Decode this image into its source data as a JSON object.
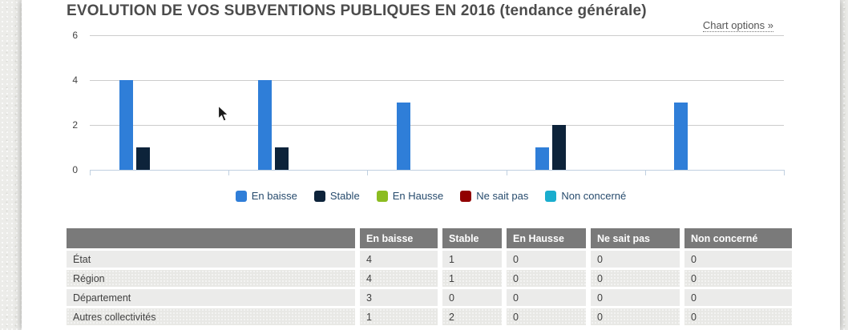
{
  "page": {
    "title": "EVOLUTION DE VOS SUBVENTIONS PUBLIQUES EN 2016 (tendance générale)",
    "chart_options_label": "Chart options »"
  },
  "chart_data": {
    "type": "bar",
    "title": "EVOLUTION DE VOS SUBVENTIONS PUBLIQUES EN 2016 (tendance générale)",
    "categories": [
      "État",
      "Région",
      "Département",
      "Autres collectivités",
      ""
    ],
    "series": [
      {
        "name": "En baisse",
        "color": "#2f7ed8",
        "values": [
          4,
          4,
          3,
          1,
          3
        ]
      },
      {
        "name": "Stable",
        "color": "#0d233a",
        "values": [
          1,
          1,
          0,
          2,
          0
        ]
      },
      {
        "name": "En Hausse",
        "color": "#8bbc21",
        "values": [
          0,
          0,
          0,
          0,
          0
        ]
      },
      {
        "name": "Ne sait pas",
        "color": "#910000",
        "values": [
          0,
          0,
          0,
          0,
          0
        ]
      },
      {
        "name": "Non concerné",
        "color": "#1aadce",
        "values": [
          0,
          0,
          0,
          0,
          0
        ]
      }
    ],
    "yticks": [
      0,
      2,
      4,
      6
    ],
    "ylim": [
      0,
      6
    ],
    "grid": true,
    "legend_position": "bottom",
    "xlabel": "",
    "ylabel": ""
  },
  "table": {
    "columns": [
      "",
      "En baisse",
      "Stable",
      "En Hausse",
      "Ne sait pas",
      "Non concerné"
    ],
    "rows": [
      {
        "label": "État",
        "values": [
          "4",
          "1",
          "0",
          "0",
          "0"
        ]
      },
      {
        "label": "Région",
        "values": [
          "4",
          "1",
          "0",
          "0",
          "0"
        ]
      },
      {
        "label": "Département",
        "values": [
          "3",
          "0",
          "0",
          "0",
          "0"
        ]
      },
      {
        "label": "Autres collectivités",
        "values": [
          "1",
          "2",
          "0",
          "0",
          "0"
        ]
      }
    ]
  },
  "colors": {
    "table_header_bg": "#7a7a7a",
    "grid_line": "#cccccc",
    "axis_line": "#c0d0e0",
    "legend_text": "#274b6d",
    "title_text": "#4c4c4c"
  }
}
